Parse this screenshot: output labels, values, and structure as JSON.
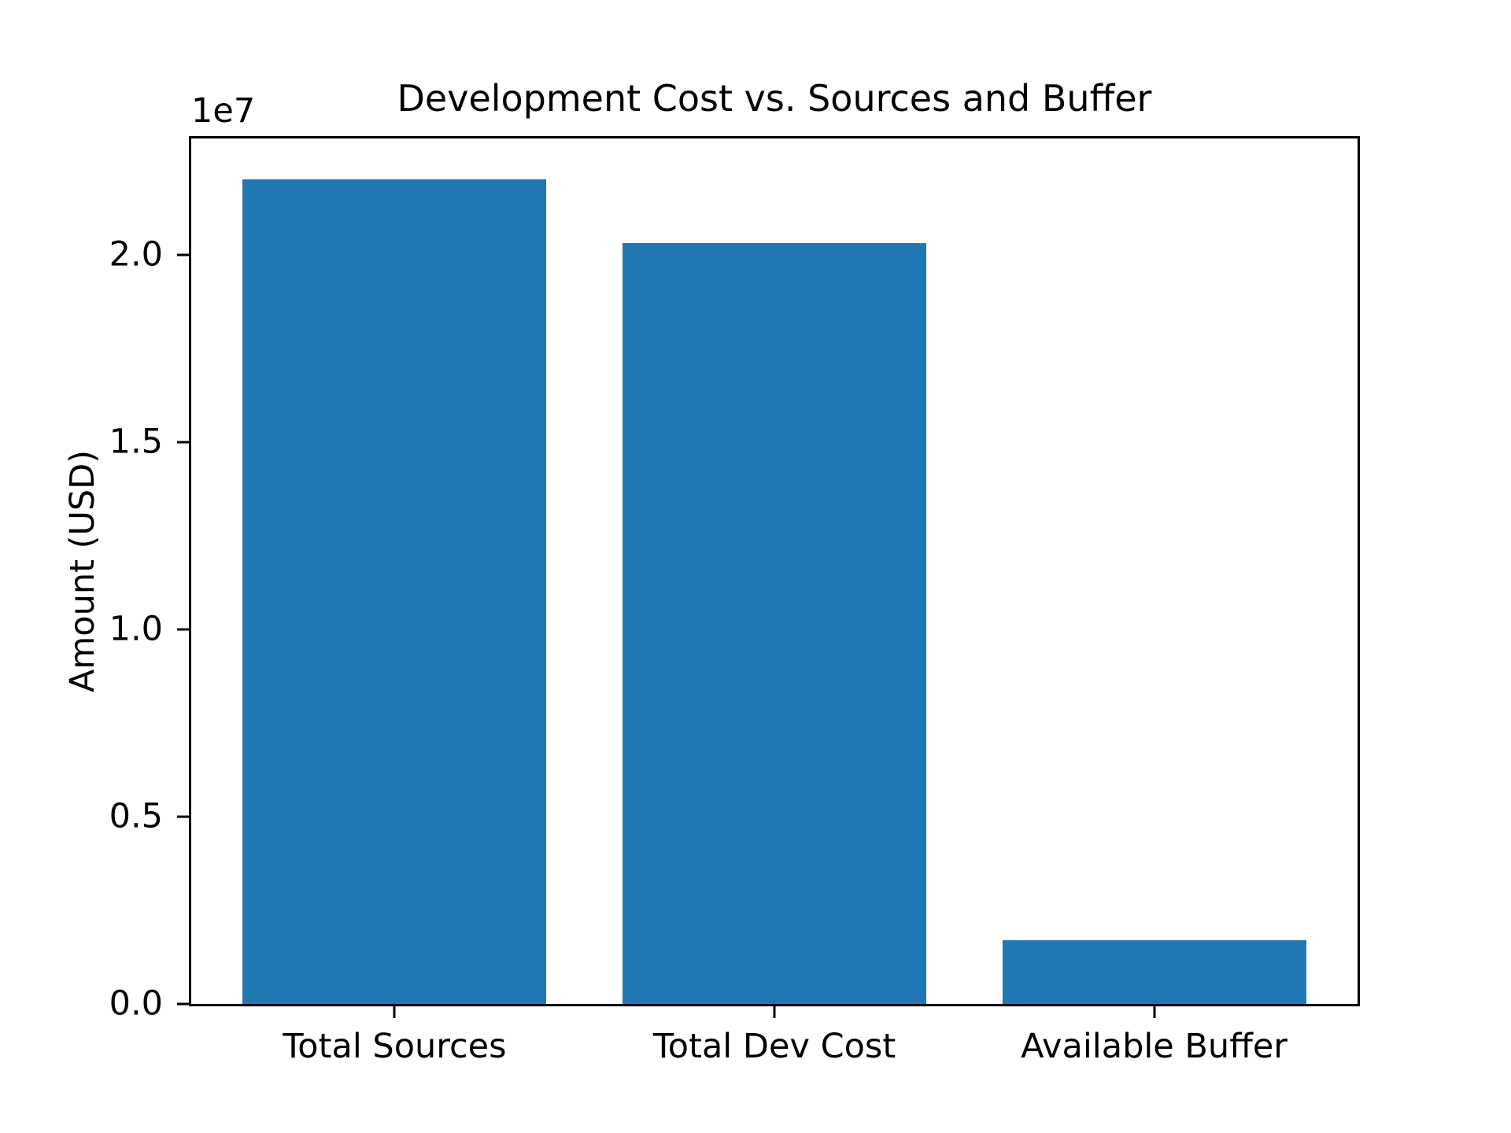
{
  "chart_data": {
    "type": "bar",
    "title": "Development Cost vs. Sources and Buffer",
    "ylabel": "Amount (USD)",
    "xlabel": "",
    "y_offset_text": "1e7",
    "categories": [
      "Total Sources",
      "Total Dev Cost",
      "Available Buffer"
    ],
    "values": [
      22000000,
      20300000,
      1700000
    ],
    "bar_color": "#1f77b4",
    "ylim": [
      0,
      23100000
    ],
    "xlim": [
      -0.5356,
      2.5356
    ],
    "bar_width_data_units": 0.8,
    "ytick_values": [
      0,
      5000000,
      10000000,
      15000000,
      20000000
    ],
    "ytick_labels": [
      "0.0",
      "0.5",
      "1.0",
      "1.5",
      "2.0"
    ],
    "grid": false,
    "legend_position": "none"
  }
}
